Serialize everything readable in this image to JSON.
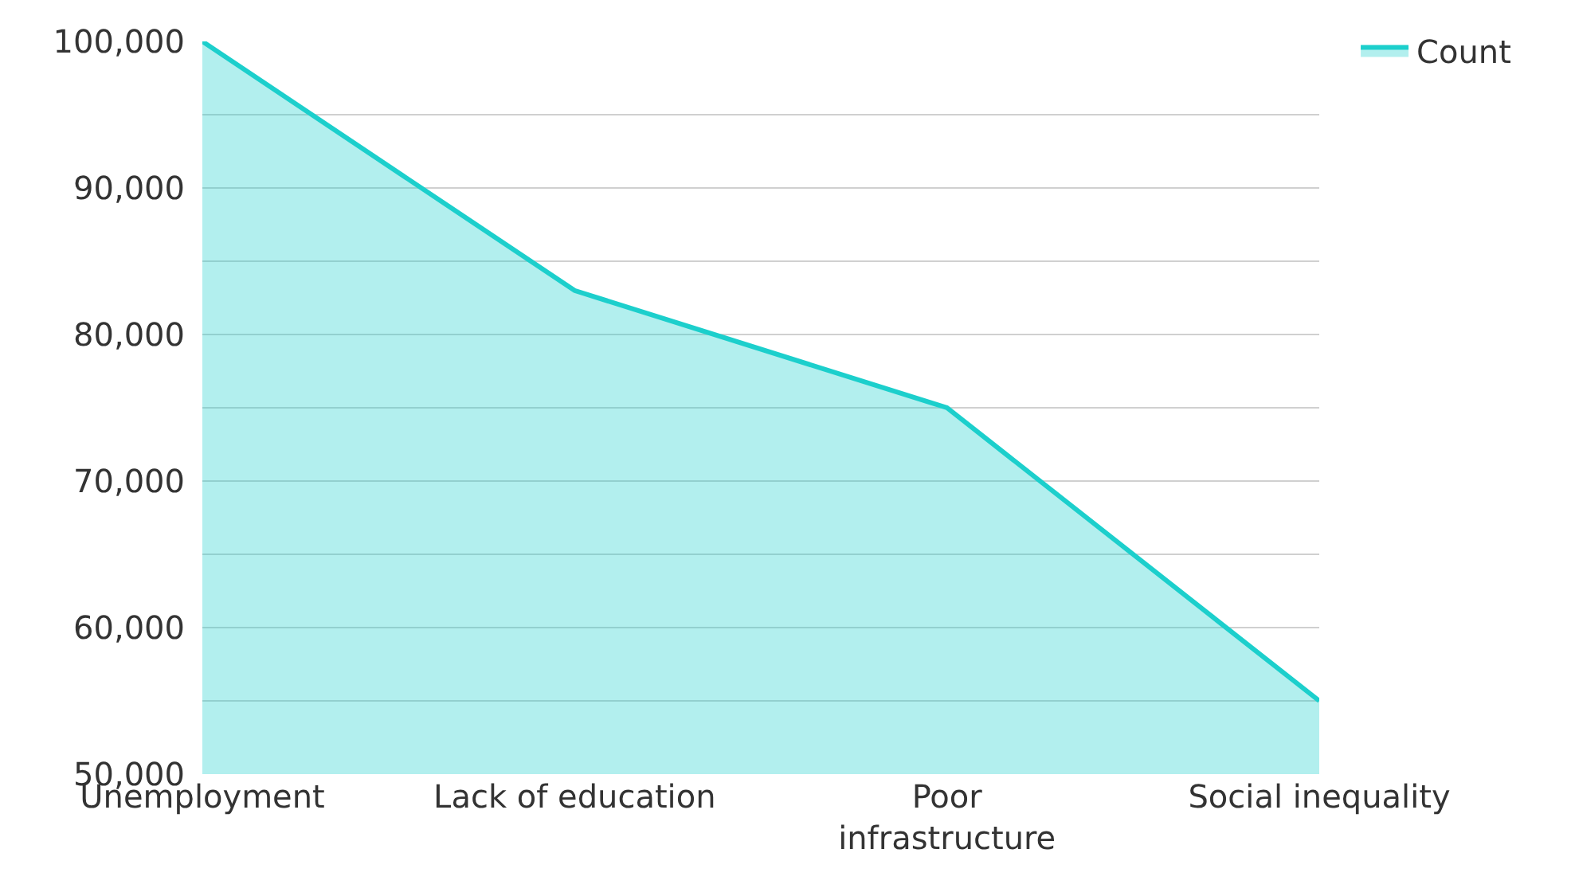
{
  "chart_data": {
    "type": "area",
    "categories": [
      "Unemployment",
      "Lack of education",
      "Poor infrastructure",
      "Social inequality"
    ],
    "series": [
      {
        "name": "Count",
        "color": "#1ccfcc",
        "values": [
          100000,
          83000,
          75000,
          55000
        ]
      }
    ],
    "ylim": [
      50000,
      100000
    ],
    "yticks": [
      {
        "value": 50000,
        "label": "50,000"
      },
      {
        "value": 55000,
        "label": null
      },
      {
        "value": 60000,
        "label": "60,000"
      },
      {
        "value": 65000,
        "label": null
      },
      {
        "value": 70000,
        "label": "70,000"
      },
      {
        "value": 75000,
        "label": null
      },
      {
        "value": 80000,
        "label": "80,000"
      },
      {
        "value": 85000,
        "label": null
      },
      {
        "value": 90000,
        "label": "90,000"
      },
      {
        "value": 95000,
        "label": null
      },
      {
        "value": 100000,
        "label": "100,000"
      }
    ],
    "grid": "y",
    "legend": "top right"
  }
}
